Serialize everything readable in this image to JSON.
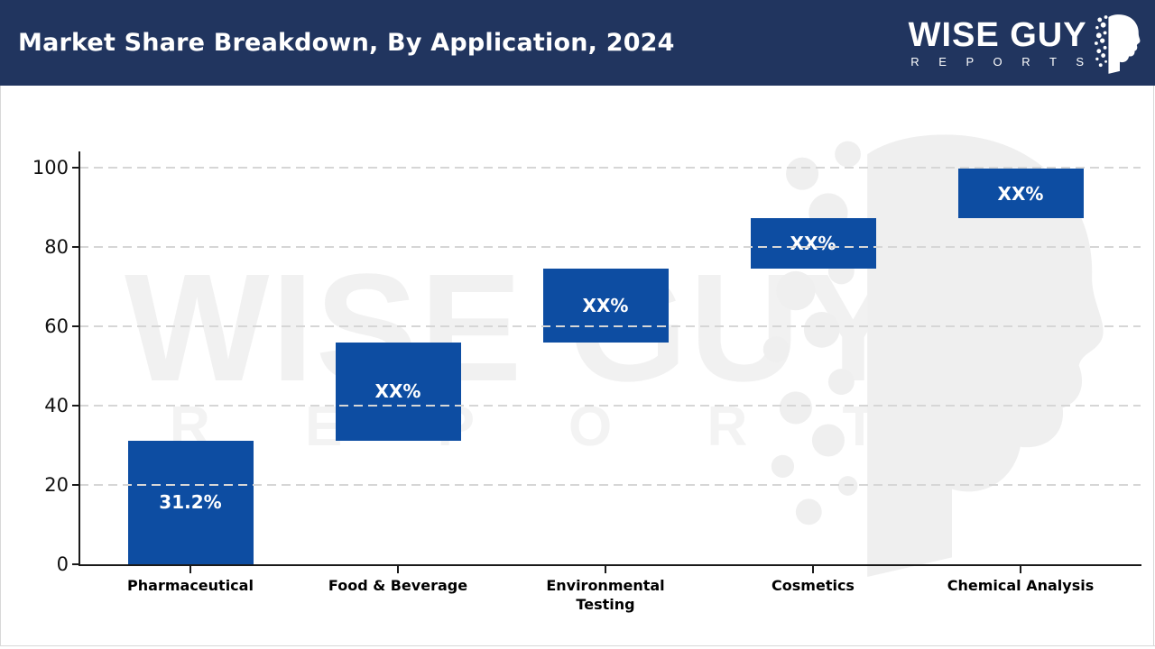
{
  "header": {
    "title": "Market Share Breakdown, By Application, 2024",
    "bg_color": "#21355f",
    "logo": {
      "line1": "WISE GUY",
      "line2": "R E P O R T S"
    }
  },
  "watermark": {
    "line1": "WISE GUY",
    "line2": "R E P O R T S"
  },
  "chart_data": {
    "type": "waterfall",
    "title": "Market Share Breakdown, By Application, 2024",
    "categories": [
      "Pharmaceutical",
      "Food & Beverage",
      "Environmental\nTesting",
      "Cosmetics",
      "Chemical Analysis"
    ],
    "series": [
      {
        "category": "Pharmaceutical",
        "start": 0,
        "end": 31.2,
        "label": "31.2%"
      },
      {
        "category": "Food & Beverage",
        "start": 31.2,
        "end": 56.0,
        "label": "XX%"
      },
      {
        "category": "Environmental Testing",
        "start": 56.0,
        "end": 74.6,
        "label": "XX%"
      },
      {
        "category": "Cosmetics",
        "start": 74.6,
        "end": 87.2,
        "label": "XX%"
      },
      {
        "category": "Chemical Analysis",
        "start": 87.2,
        "end": 99.8,
        "label": "XX%"
      }
    ],
    "y_ticks": [
      0,
      20,
      40,
      60,
      80,
      100
    ],
    "ylim": [
      0,
      104
    ],
    "xlabel": "",
    "ylabel": "",
    "bar_color": "#0d4da2",
    "grid": "horizontal-dashed",
    "legend": "none"
  }
}
